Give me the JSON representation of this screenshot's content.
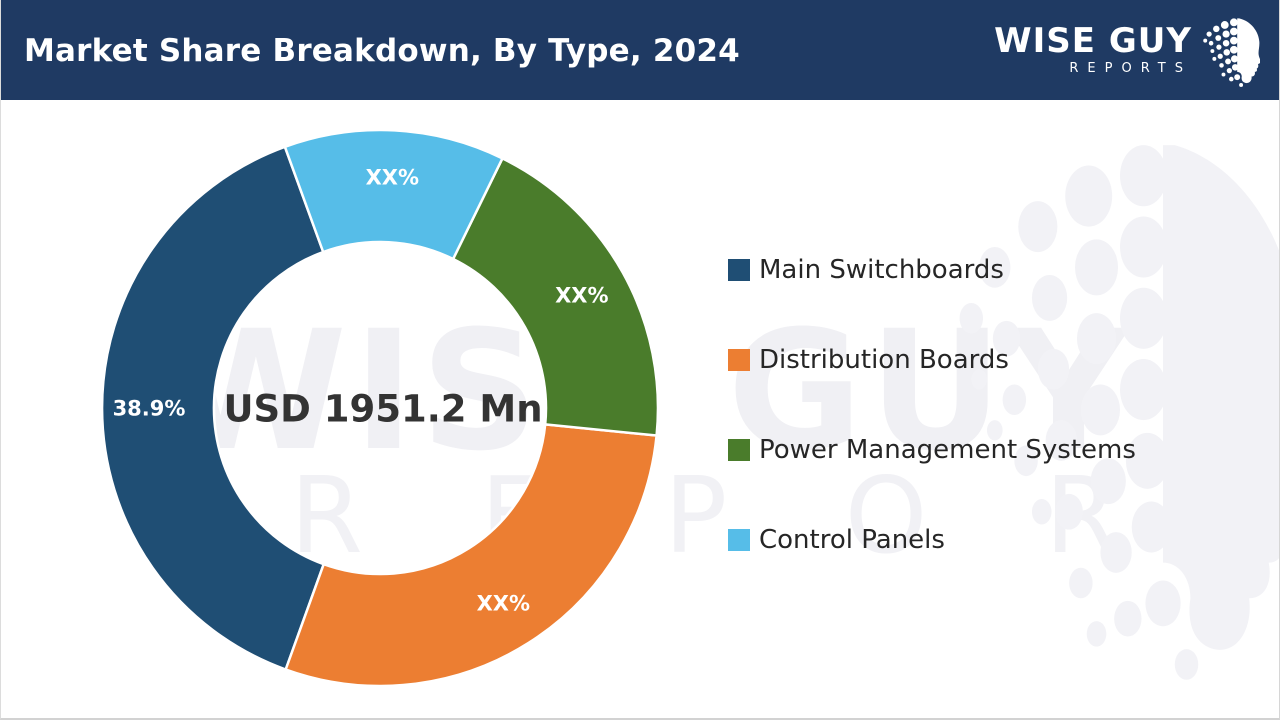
{
  "header": {
    "title": "Market Share Breakdown, By Type, 2024",
    "logo": {
      "name": "WISE GUY",
      "sub": "REPORTS"
    }
  },
  "chart_data": {
    "type": "pie",
    "subtype": "donut",
    "title": "Market Share Breakdown, By Type, 2024",
    "center_label": "USD 1951.2 Mn",
    "legend_position": "right",
    "start_angle_deg_cw_from_top": -20,
    "direction": "counterclockwise",
    "segments": [
      {
        "name": "Main Switchboards",
        "label": "38.9%",
        "value_pct": 38.9,
        "color": "#1f4e74"
      },
      {
        "name": "Distribution Boards",
        "label": "XX%",
        "value_pct": 28.9,
        "color": "#ec7e32"
      },
      {
        "name": "Power Management Systems",
        "label": "XX%",
        "value_pct": 19.3,
        "color": "#4a7c2b"
      },
      {
        "name": "Control Panels",
        "label": "XX%",
        "value_pct": 12.8,
        "color": "#56bde8"
      }
    ],
    "colors": {
      "header_bg": "#1f3a63",
      "center_text": "#333333",
      "segment_label_text": "#ffffff"
    }
  },
  "watermark": {
    "line1": "WISE GUY",
    "line2": "R E P O R T S"
  }
}
